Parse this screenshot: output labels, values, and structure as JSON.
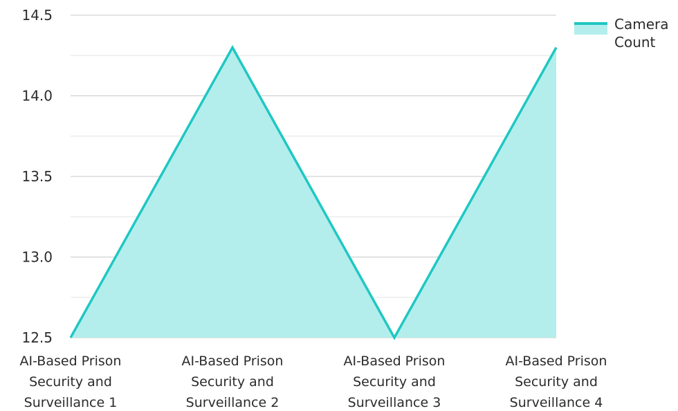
{
  "chart_data": {
    "type": "area",
    "categories": [
      [
        "AI-Based Prison",
        "Security and",
        "Surveillance 1"
      ],
      [
        "AI-Based Prison",
        "Security and",
        "Surveillance 2"
      ],
      [
        "AI-Based Prison",
        "Security and",
        "Surveillance 3"
      ],
      [
        "AI-Based Prison",
        "Security and",
        "Surveillance 4"
      ]
    ],
    "series": [
      {
        "name": "Camera Count",
        "values": [
          12.5,
          14.3,
          12.5,
          14.3
        ]
      }
    ],
    "ylim": [
      12.5,
      14.5
    ],
    "yticks": [
      "12.5",
      "13.0",
      "13.5",
      "14.0",
      "14.5"
    ],
    "grid": true,
    "legend_position": "top-right",
    "colors": {
      "line": "#1fc7c3",
      "fill": "#b3eeec",
      "grid": "#cfcfcf"
    }
  }
}
